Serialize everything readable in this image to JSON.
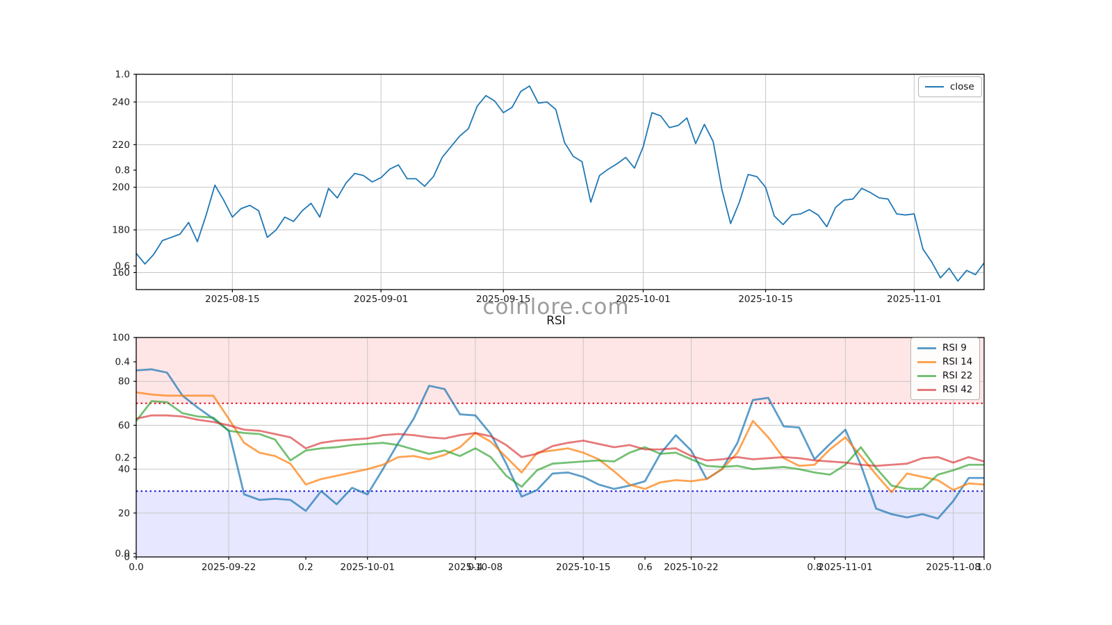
{
  "watermark": "coinlore.com",
  "rsi_title": "RSI",
  "colors": {
    "close_line": "#1f77b4",
    "rsi9_line": "rgba(31,119,180,0.72)",
    "rsi14_line": "rgba(255,127,14,0.72)",
    "rsi22_line": "rgba(44,160,44,0.66)",
    "rsi42_line": "rgba(214,39,40,0.62)",
    "overbought_band": "rgba(255,60,60,0.13)",
    "oversold_band": "rgba(70,70,255,0.13)",
    "overbought_dotted": "#e8041c",
    "oversold_dotted": "#0d0dd6",
    "gridline": "#c6c6c6",
    "frame": "#000000",
    "tick_text": "#1a1a1a",
    "overlay_text": "#1a1a1a"
  },
  "price_legend": [
    {
      "label": "close",
      "color": "#1f77b4",
      "thickness": 2
    }
  ],
  "rsi_legend": [
    {
      "label": "RSI 9",
      "color": "rgba(31,119,180,0.72)",
      "thickness": 3
    },
    {
      "label": "RSI 14",
      "color": "rgba(255,127,14,0.72)",
      "thickness": 3
    },
    {
      "label": "RSI 22",
      "color": "rgba(44,160,44,0.66)",
      "thickness": 3
    },
    {
      "label": "RSI 42",
      "color": "rgba(214,39,40,0.62)",
      "thickness": 3
    }
  ],
  "overlay_axis": {
    "y_tick_labels": [
      "1.0",
      "0.8",
      "0.6",
      "0.4",
      "0.2",
      "0.0"
    ],
    "x_tick_labels": [
      "0.0",
      "0.2",
      "0.4",
      "0.6",
      "0.8",
      "1.0"
    ]
  },
  "chart_data": [
    {
      "type": "line",
      "title": "",
      "xlabel": "",
      "ylabel": "",
      "ylim": [
        152,
        253
      ],
      "grid": true,
      "legend_position": "upper right",
      "y_tick_labels": [
        "160",
        "180",
        "200",
        "220",
        "240"
      ],
      "y_tick_values": [
        160,
        180,
        200,
        220,
        240
      ],
      "x_tick_labels": [
        "2025-08-15",
        "2025-09-01",
        "2025-09-15",
        "2025-10-01",
        "2025-10-15",
        "2025-11-01"
      ],
      "x_tick_days": [
        11,
        28,
        42,
        58,
        72,
        89
      ],
      "series": [
        {
          "name": "close",
          "values": [
            169,
            164,
            168.5,
            175,
            176.5,
            178,
            183.5,
            174.5,
            187,
            201,
            194,
            186,
            190,
            191.5,
            189,
            176.5,
            180,
            186,
            184,
            189,
            192.5,
            186,
            199.5,
            195,
            202,
            206.5,
            205.5,
            202.5,
            204.5,
            208.5,
            210.5,
            204,
            204,
            200.5,
            205,
            214,
            219,
            224,
            227.5,
            238,
            243,
            240.5,
            235,
            237.5,
            245,
            247.5,
            239.5,
            240,
            236.5,
            221,
            214.5,
            212,
            193,
            205.5,
            208.5,
            211,
            214,
            209,
            219,
            235,
            233.5,
            228,
            229,
            232.5,
            220.5,
            229.5,
            221.5,
            199,
            183,
            193,
            206,
            205,
            200,
            186.5,
            182.5,
            187,
            187.5,
            189.5,
            187,
            181.5,
            190.5,
            194,
            194.5,
            199.5,
            197.5,
            195,
            194.5,
            187.5,
            187,
            187.5,
            171,
            165,
            157.5,
            162,
            156,
            161,
            159,
            164.5
          ]
        }
      ]
    },
    {
      "type": "line",
      "title": "RSI",
      "xlabel": "",
      "ylabel": "",
      "ylim": [
        0,
        100
      ],
      "grid": true,
      "legend_position": "upper right",
      "overbought_level": 70,
      "oversold_level": 30,
      "y_tick_labels": [
        "0",
        "20",
        "40",
        "60",
        "80",
        "100"
      ],
      "y_tick_values": [
        0,
        20,
        40,
        60,
        80,
        100
      ],
      "x_tick_labels": [
        "2025-09-22",
        "2025-10-01",
        "2025-10-08",
        "2025-10-15",
        "2025-10-22",
        "2025-11-01",
        "2025-11-08"
      ],
      "x_tick_days": [
        6,
        15,
        22,
        29,
        36,
        46,
        53
      ],
      "series": [
        {
          "name": "RSI 9",
          "values": [
            85,
            85.5,
            84,
            73.5,
            68,
            63,
            57.5,
            28.5,
            26,
            26.5,
            26,
            21,
            30,
            24,
            31.5,
            28.5,
            40,
            52,
            63,
            78,
            76.5,
            65,
            64.5,
            56,
            42.5,
            27.5,
            30.5,
            38,
            38.5,
            36.5,
            33,
            31,
            32.5,
            34.5,
            47,
            55.5,
            48.5,
            35.5,
            40,
            52,
            71.5,
            72.5,
            59.5,
            59,
            44.5,
            51.5,
            58,
            42,
            22,
            19.5,
            18,
            19.5,
            17.5,
            25.5,
            36,
            36
          ]
        },
        {
          "name": "RSI 14",
          "values": [
            75,
            74,
            73.5,
            73.5,
            73.5,
            73.5,
            63,
            52,
            47.5,
            46,
            42.5,
            33,
            35.5,
            37,
            38.5,
            40,
            42,
            45.5,
            46,
            44.5,
            46.5,
            50,
            56.5,
            52.5,
            45.5,
            38.5,
            47.5,
            48.5,
            49.5,
            47.5,
            44.5,
            39,
            33,
            31,
            34,
            35,
            34.5,
            35.5,
            40,
            47.5,
            62,
            54.5,
            45,
            41.5,
            42,
            49,
            54.5,
            46,
            37.5,
            29.5,
            38,
            36.5,
            35,
            30.5,
            33.5,
            33
          ]
        },
        {
          "name": "RSI 22",
          "values": [
            62,
            71,
            70.5,
            65.5,
            64,
            63.5,
            57.5,
            56.5,
            56,
            53.5,
            44,
            48.5,
            49.5,
            50,
            51,
            51.5,
            52,
            51,
            49,
            47,
            48.5,
            46,
            49.5,
            45.5,
            37,
            32,
            39.5,
            42.5,
            43,
            43.5,
            44,
            43.5,
            47.5,
            50,
            47,
            47.5,
            44.5,
            41.5,
            41,
            41.5,
            40,
            40.5,
            41,
            40,
            38.5,
            37.5,
            42,
            50,
            40.5,
            32.5,
            31,
            31,
            37.5,
            39.5,
            42,
            42
          ]
        },
        {
          "name": "RSI 42",
          "values": [
            63,
            64.5,
            64.5,
            64,
            62.5,
            61.5,
            60,
            58,
            57.5,
            56,
            54.5,
            49.5,
            52,
            53,
            53.5,
            54,
            55.5,
            56,
            55.5,
            54.5,
            54,
            55.5,
            56.5,
            55,
            51,
            45.5,
            47,
            50.5,
            52,
            53,
            51.5,
            50,
            51,
            49,
            49,
            49.5,
            46,
            44,
            44.5,
            45.5,
            44.5,
            45,
            45.5,
            45,
            44,
            43.5,
            43,
            42,
            41.5,
            42,
            42.5,
            45,
            45.5,
            43,
            45.5,
            43.5
          ]
        }
      ]
    }
  ]
}
